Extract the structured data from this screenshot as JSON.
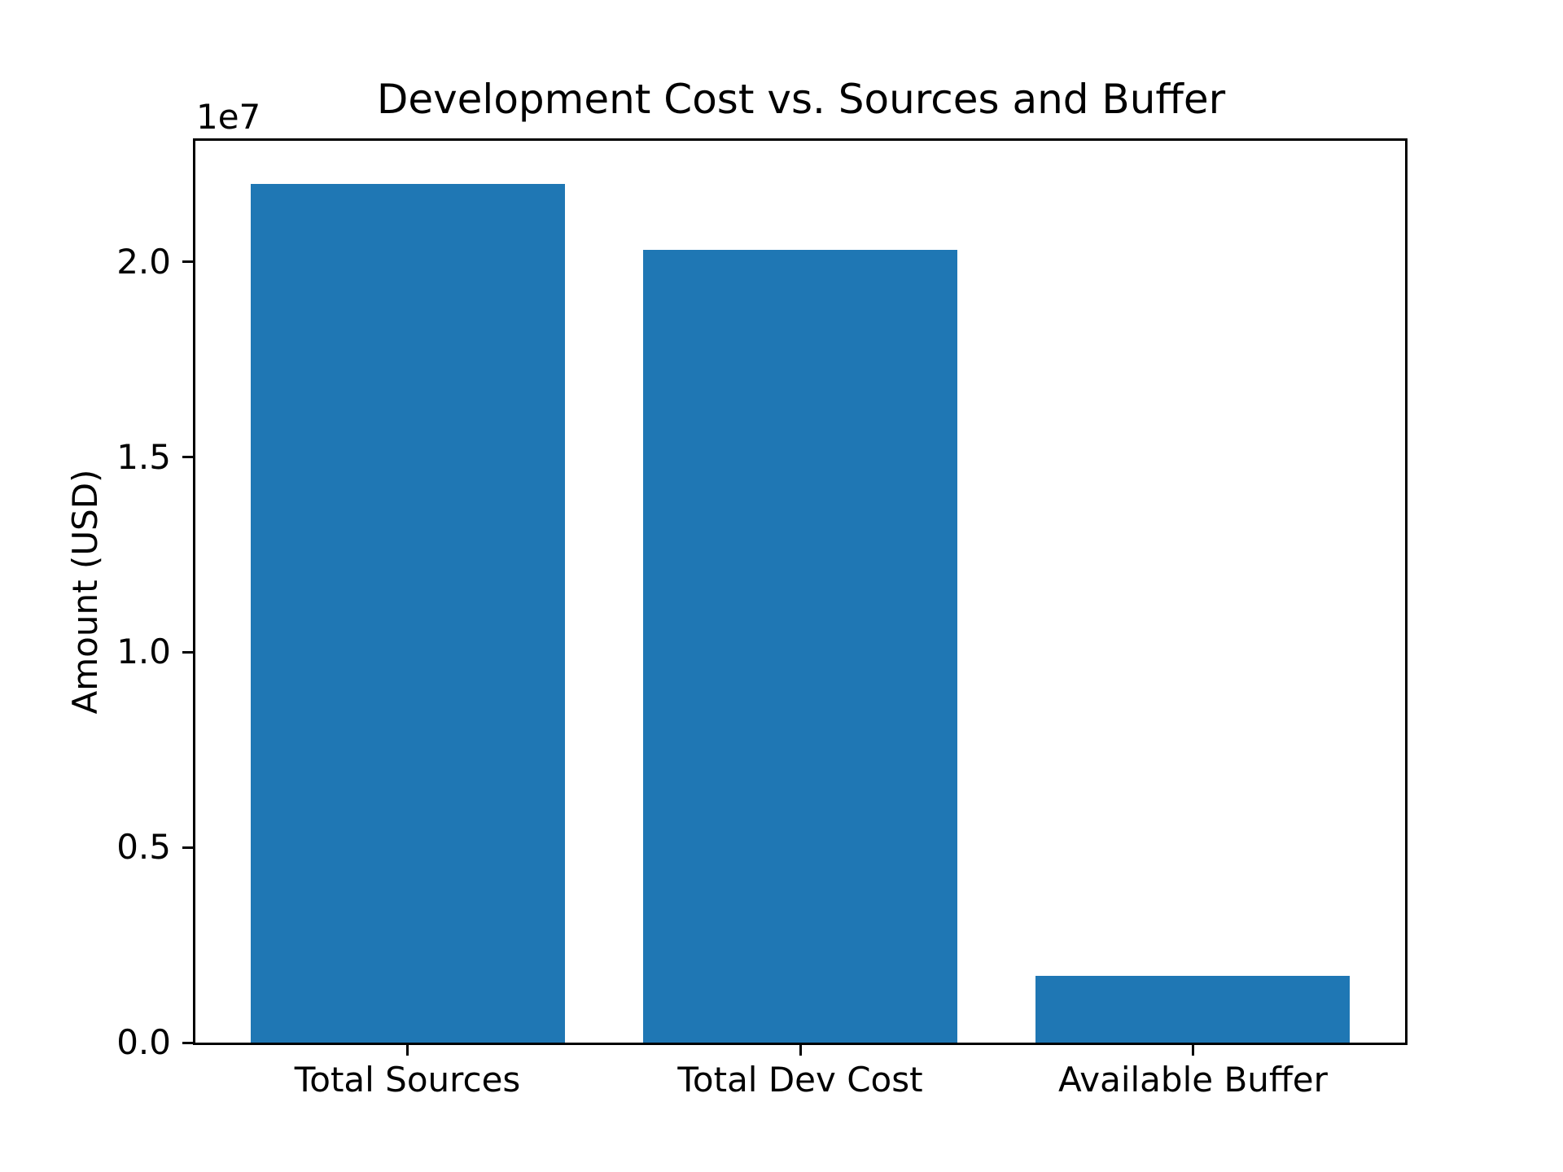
{
  "chart_data": {
    "type": "bar",
    "title": "Development Cost vs. Sources and Buffer",
    "xlabel": "",
    "ylabel": "Amount (USD)",
    "offset_text": "1e7",
    "categories": [
      "Total Sources",
      "Total Dev Cost",
      "Available Buffer"
    ],
    "values": [
      22000000,
      20300000,
      1700000
    ],
    "ylim": [
      0,
      23100000
    ],
    "yticks": [
      0,
      5000000,
      10000000,
      15000000,
      20000000
    ],
    "ytick_labels": [
      "0.0",
      "0.5",
      "1.0",
      "1.5",
      "2.0"
    ],
    "bar_color": "#1f77b4",
    "axis_color": "#000000",
    "grid": false,
    "legend": null,
    "bar_width_fraction": 0.8
  }
}
